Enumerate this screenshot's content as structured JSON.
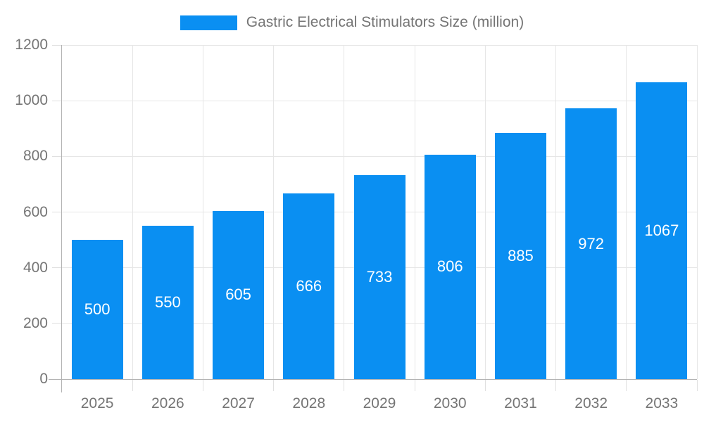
{
  "legend": {
    "label": "Gastric Electrical Stimulators Size (million)"
  },
  "chart_data": {
    "type": "bar",
    "title": "Gastric Electrical Stimulators Size (million)",
    "series_name": "Gastric Electrical Stimulators Size (million)",
    "categories": [
      "2025",
      "2026",
      "2027",
      "2028",
      "2029",
      "2030",
      "2031",
      "2032",
      "2033"
    ],
    "values": [
      500,
      550,
      605,
      666,
      733,
      806,
      885,
      972,
      1067
    ],
    "xlabel": "",
    "ylabel": "",
    "ylim": [
      0,
      1200
    ],
    "yticks": [
      0,
      200,
      400,
      600,
      800,
      1000,
      1200
    ],
    "grid": true,
    "legend_position": "top-center",
    "bar_label_position": "inside-center",
    "colors": {
      "bar": "#0a8ff2",
      "bar_label": "#ffffff",
      "axis_line": "#b3b3b3",
      "gridline": "#e6e6e6",
      "tick": "#e0e0e0",
      "axis_text": "#757575"
    }
  }
}
